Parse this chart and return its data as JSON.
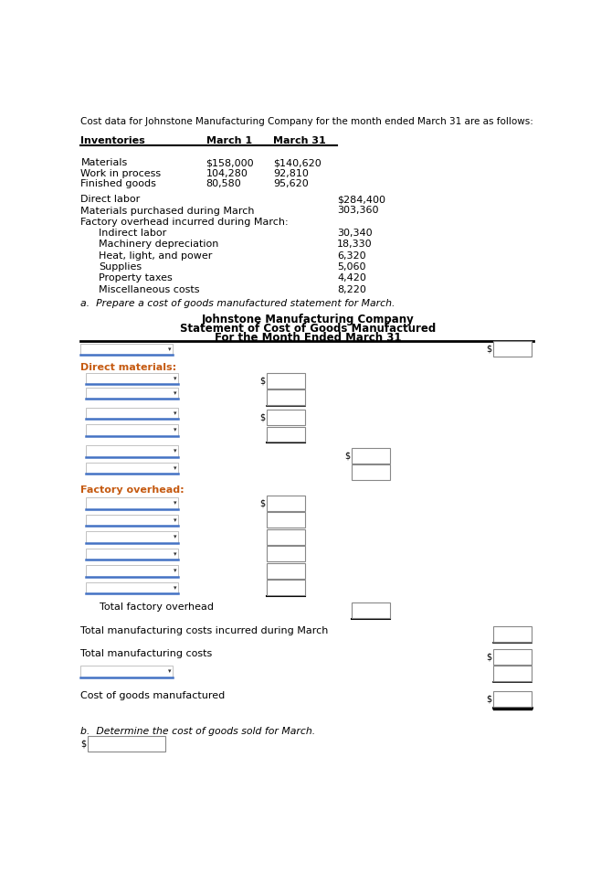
{
  "title_text": "Cost data for Johnstone Manufacturing Company for the month ended March 31 are as follows:",
  "table_headers": [
    "Inventories",
    "March 1",
    "March 31"
  ],
  "table_rows": [
    [
      "Materials",
      "$158,000",
      "$140,620"
    ],
    [
      "Work in process",
      "104,280",
      "92,810"
    ],
    [
      "Finished goods",
      "80,580",
      "95,620"
    ]
  ],
  "data_items": [
    {
      "label": "Direct labor",
      "value": "$284,400",
      "indent": 0
    },
    {
      "label": "Materials purchased during March",
      "value": "303,360",
      "indent": 0
    },
    {
      "label": "Factory overhead incurred during March:",
      "value": "",
      "indent": 0
    },
    {
      "label": "Indirect labor",
      "value": "30,340",
      "indent": 1
    },
    {
      "label": "Machinery depreciation",
      "value": "18,330",
      "indent": 1
    },
    {
      "label": "Heat, light, and power",
      "value": "6,320",
      "indent": 1
    },
    {
      "label": "Supplies",
      "value": "5,060",
      "indent": 1
    },
    {
      "label": "Property taxes",
      "value": "4,420",
      "indent": 1
    },
    {
      "label": "Miscellaneous costs",
      "value": "8,220",
      "indent": 1
    }
  ],
  "part_a_label": "a.  Prepare a cost of goods manufactured statement for March.",
  "company_title": "Johnstone Manufacturing Company",
  "statement_title": "Statement of Cost of Goods Manufactured",
  "month_title": "For the Month Ended March 31",
  "part_b_label": "b.  Determine the cost of goods sold for March.",
  "bg_color": "#ffffff",
  "text_color": "#000000",
  "blue_line_color": "#4472c4",
  "orange_text_color": "#c55a11",
  "header_line_color": "#000000"
}
